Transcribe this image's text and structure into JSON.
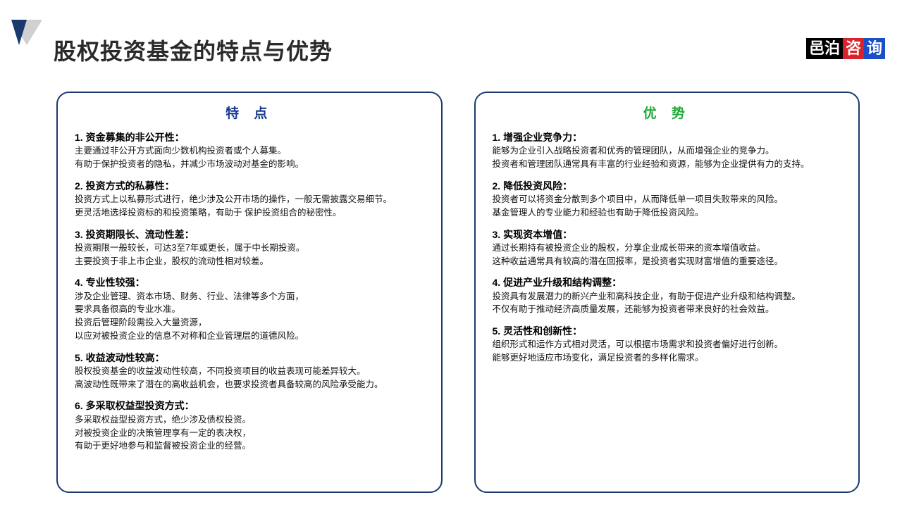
{
  "title": "股权投资基金的特点与优势",
  "logo": {
    "p1": "邑泊",
    "p2": "咨",
    "p3": "询"
  },
  "colors": {
    "panel_border": "#1a3a6e",
    "title_blue": "#1a3a8e",
    "title_green": "#22a83a",
    "corner_gray": "#d0d0d0",
    "corner_blue": "#1a3a6e"
  },
  "left": {
    "heading": "特 点",
    "items": [
      {
        "head": "1. 资金募集的非公开性：",
        "body": "主要通过非公开方式面向少数机构投资者或个人募集。\n有助于保护投资者的隐私，并减少市场波动对基金的影响。"
      },
      {
        "head": "2. 投资方式的私募性：",
        "body": "投资方式上以私募形式进行，绝少涉及公开市场的操作，一般无需披露交易细节。\n更灵活地选择投资标的和投资策略，有助于 保护投资组合的秘密性。"
      },
      {
        "head": "3. 投资期限长、流动性差：",
        "body": "投资期限一般较长，可达3至7年或更长，属于中长期投资。\n主要投资于非上市企业，股权的流动性相对较差。"
      },
      {
        "head": "4. 专业性较强：",
        "body": "涉及企业管理、资本市场、财务、行业、法律等多个方面，\n要求具备很高的专业水准。\n投资后管理阶段需投入大量资源，\n以应对被投资企业的信息不对称和企业管理层的道德风险。"
      },
      {
        "head": "5. 收益波动性较高：",
        "body": "股权投资基金的收益波动性较高，不同投资项目的收益表现可能差异较大。\n高波动性既带来了潜在的高收益机会，也要求投资者具备较高的风险承受能力。"
      },
      {
        "head": "6. 多采取权益型投资方式：",
        "body": "多采取权益型投资方式，绝少涉及债权投资。\n对被投资企业的决策管理享有一定的表决权，\n有助于更好地参与和监督被投资企业的经营。"
      }
    ]
  },
  "right": {
    "heading": "优 势",
    "items": [
      {
        "head": "1. 增强企业竞争力：",
        "body": "能够为企业引入战略投资者和优秀的管理团队，从而增强企业的竞争力。\n投资者和管理团队通常具有丰富的行业经验和资源，能够为企业提供有力的支持。"
      },
      {
        "head": "2. 降低投资风险：",
        "body": "投资者可以将资金分散到多个项目中，从而降低单一项目失败带来的风险。\n基金管理人的专业能力和经验也有助于降低投资风险。"
      },
      {
        "head": "3. 实现资本增值：",
        "body": "通过长期持有被投资企业的股权，分享企业成长带来的资本增值收益。\n这种收益通常具有较高的潜在回报率，是投资者实现财富增值的重要途径。"
      },
      {
        "head": "4. 促进产业升级和结构调整：",
        "body": "投资具有发展潜力的新兴产业和高科技企业，有助于促进产业升级和结构调整。\n不仅有助于推动经济高质量发展，还能够为投资者带来良好的社会效益。"
      },
      {
        "head": "5. 灵活性和创新性：",
        "body": "组织形式和运作方式相对灵活，可以根据市场需求和投资者偏好进行创新。\n能够更好地适应市场变化，满足投资者的多样化需求。"
      }
    ]
  }
}
